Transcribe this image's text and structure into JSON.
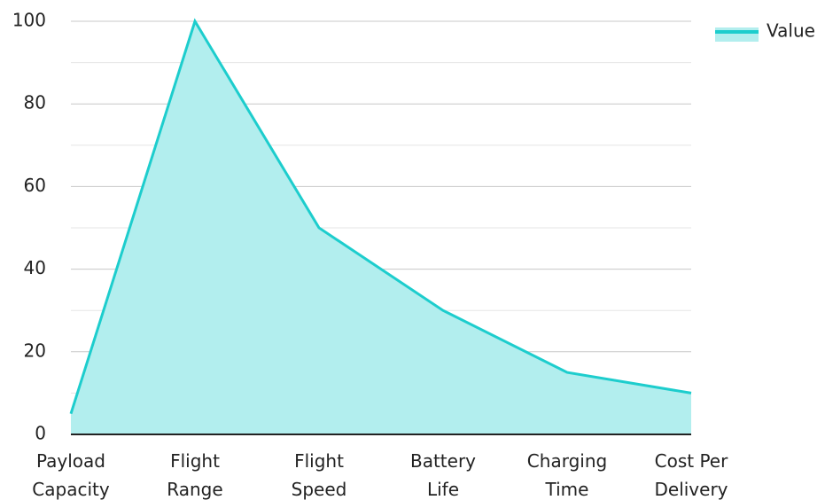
{
  "chart_data": {
    "type": "area",
    "categories": [
      [
        "Payload",
        "Capacity"
      ],
      [
        "Flight",
        "Range"
      ],
      [
        "Flight",
        "Speed"
      ],
      [
        "Battery",
        "Life"
      ],
      [
        "Charging",
        "Time"
      ],
      [
        "Cost Per",
        "Delivery"
      ]
    ],
    "series": [
      {
        "name": "Value",
        "values": [
          5,
          100,
          50,
          30,
          15,
          10
        ]
      }
    ],
    "ylim": [
      0,
      100
    ],
    "yticks": [
      0,
      20,
      40,
      60,
      80,
      100
    ],
    "grid": true,
    "legend_position": "top-right",
    "colors": {
      "line": "#1dcdcd",
      "fill": "#b2eeee",
      "grid_major": "#c8c8c8",
      "grid_minor": "#e6e6e6",
      "axis": "#222222"
    },
    "title": "",
    "xlabel": "",
    "ylabel": ""
  }
}
